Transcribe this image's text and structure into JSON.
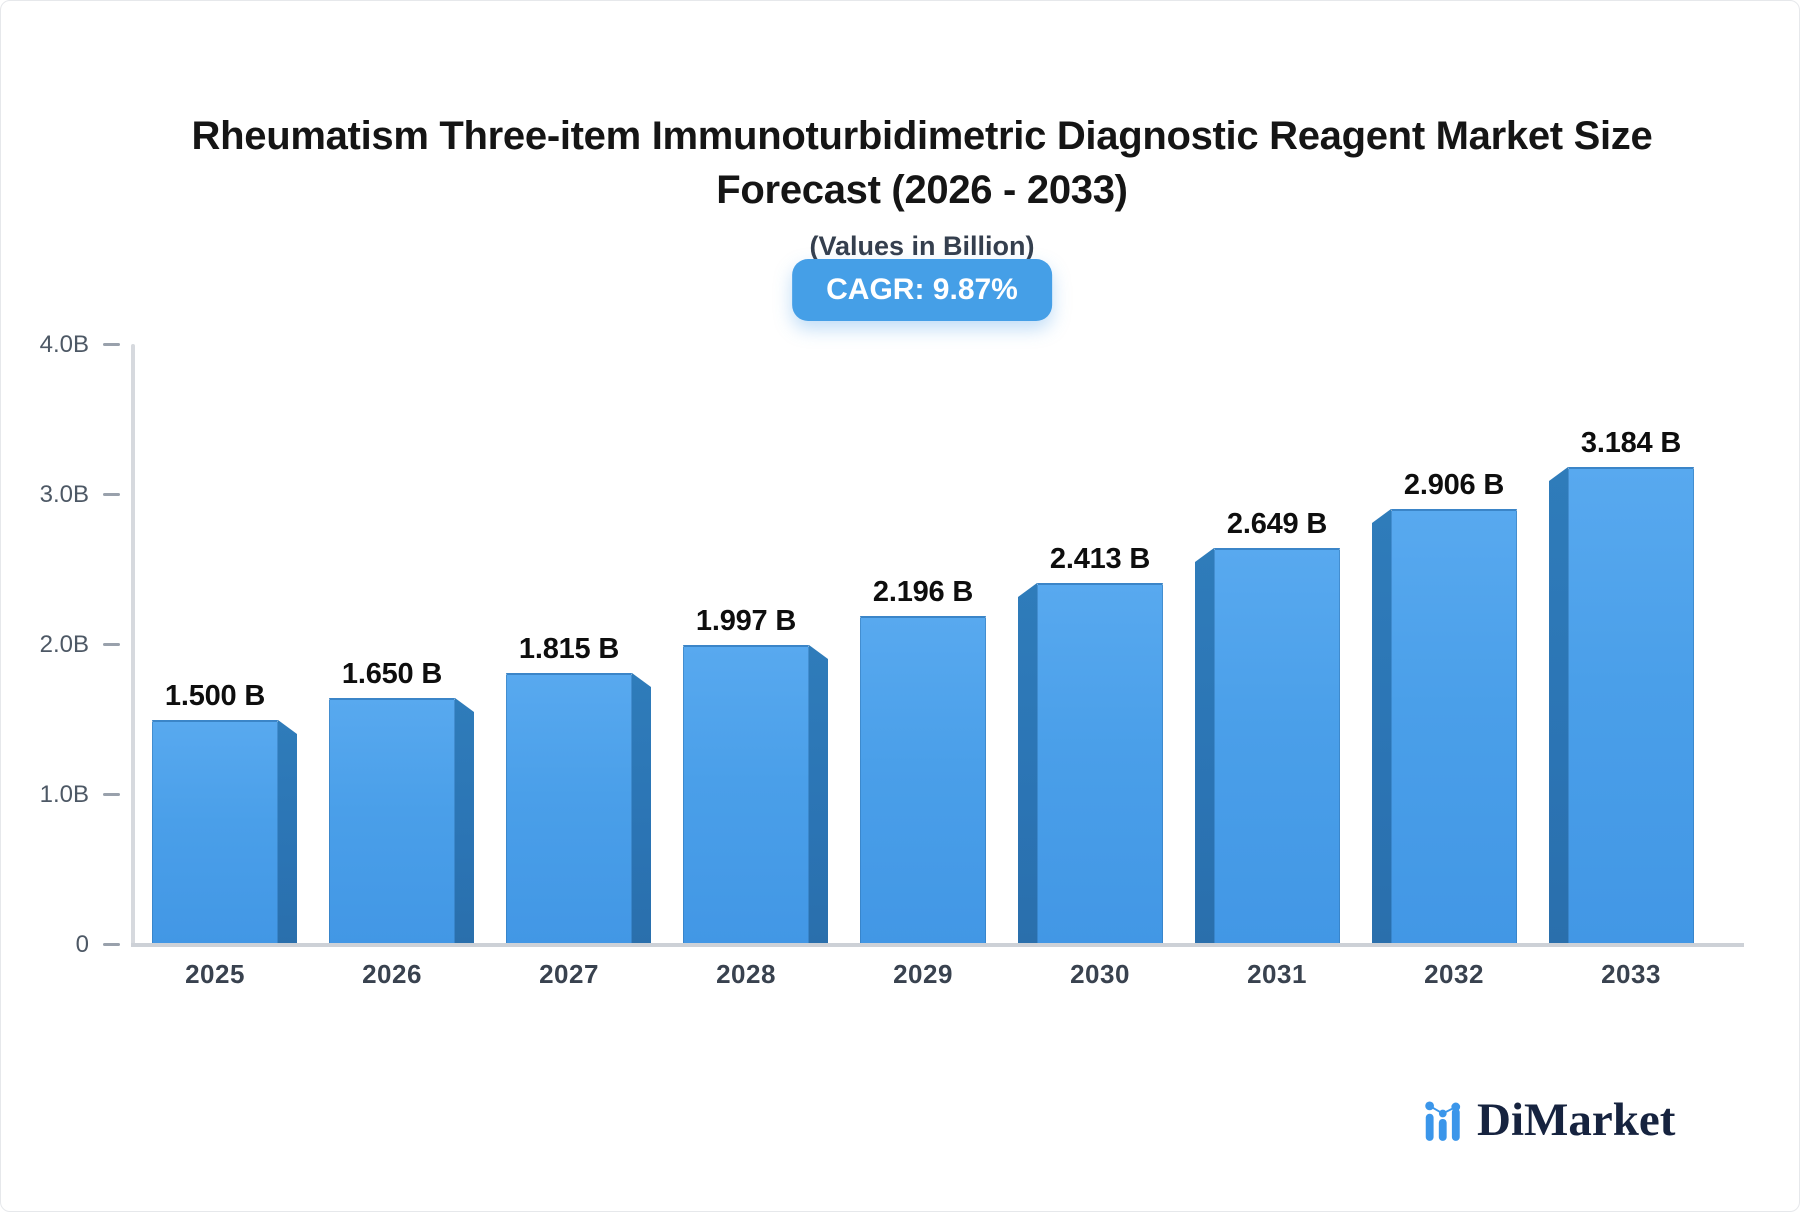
{
  "title": {
    "line1": "Rheumatism Three-item Immunoturbidimetric Diagnostic Reagent Market Size",
    "line2": "Forecast (2026 - 2033)"
  },
  "subtitle": "(Values in Billion)",
  "badge": {
    "label": "CAGR: 9.87%"
  },
  "logo": {
    "text": "DiMarket",
    "icon": "bar-chart-trend-icon"
  },
  "colors": {
    "accent_blue": "#459fe7",
    "bar_face_top": "#58a9ef",
    "bar_face_bottom": "#4297e5",
    "bar_side": "#2b74b4",
    "axis_line": "#d6d9de",
    "tick_text": "#4d5865",
    "year_text": "#39424f",
    "title_text": "#151515",
    "logo_navy": "#16233f"
  },
  "chart_data": {
    "type": "bar",
    "title": "Rheumatism Three-item Immunoturbidimetric Diagnostic Reagent Market Size Forecast (2026 - 2033)",
    "subtitle": "(Values in Billion)",
    "cagr_label": "CAGR: 9.87%",
    "categories": [
      "2025",
      "2026",
      "2027",
      "2028",
      "2029",
      "2030",
      "2031",
      "2032",
      "2033"
    ],
    "values": [
      1.5,
      1.65,
      1.815,
      1.997,
      2.196,
      2.413,
      2.649,
      2.906,
      3.184
    ],
    "value_labels": [
      "1.500 B",
      "1.650 B",
      "1.815 B",
      "1.997 B",
      "2.196 B",
      "2.413 B",
      "2.649 B",
      "2.906 B",
      "3.184 B"
    ],
    "xlabel": "",
    "ylabel": "",
    "ylim": [
      0,
      4
    ],
    "yticks": [
      {
        "label": "4.0B",
        "value": 4
      },
      {
        "label": "3.0B",
        "value": 3
      },
      {
        "label": "2.0B",
        "value": 2
      },
      {
        "label": "1.0B",
        "value": 1
      },
      {
        "label": "0",
        "value": 0
      }
    ],
    "grid": false,
    "legend": false,
    "bar_style": "3d-center-perspective"
  }
}
